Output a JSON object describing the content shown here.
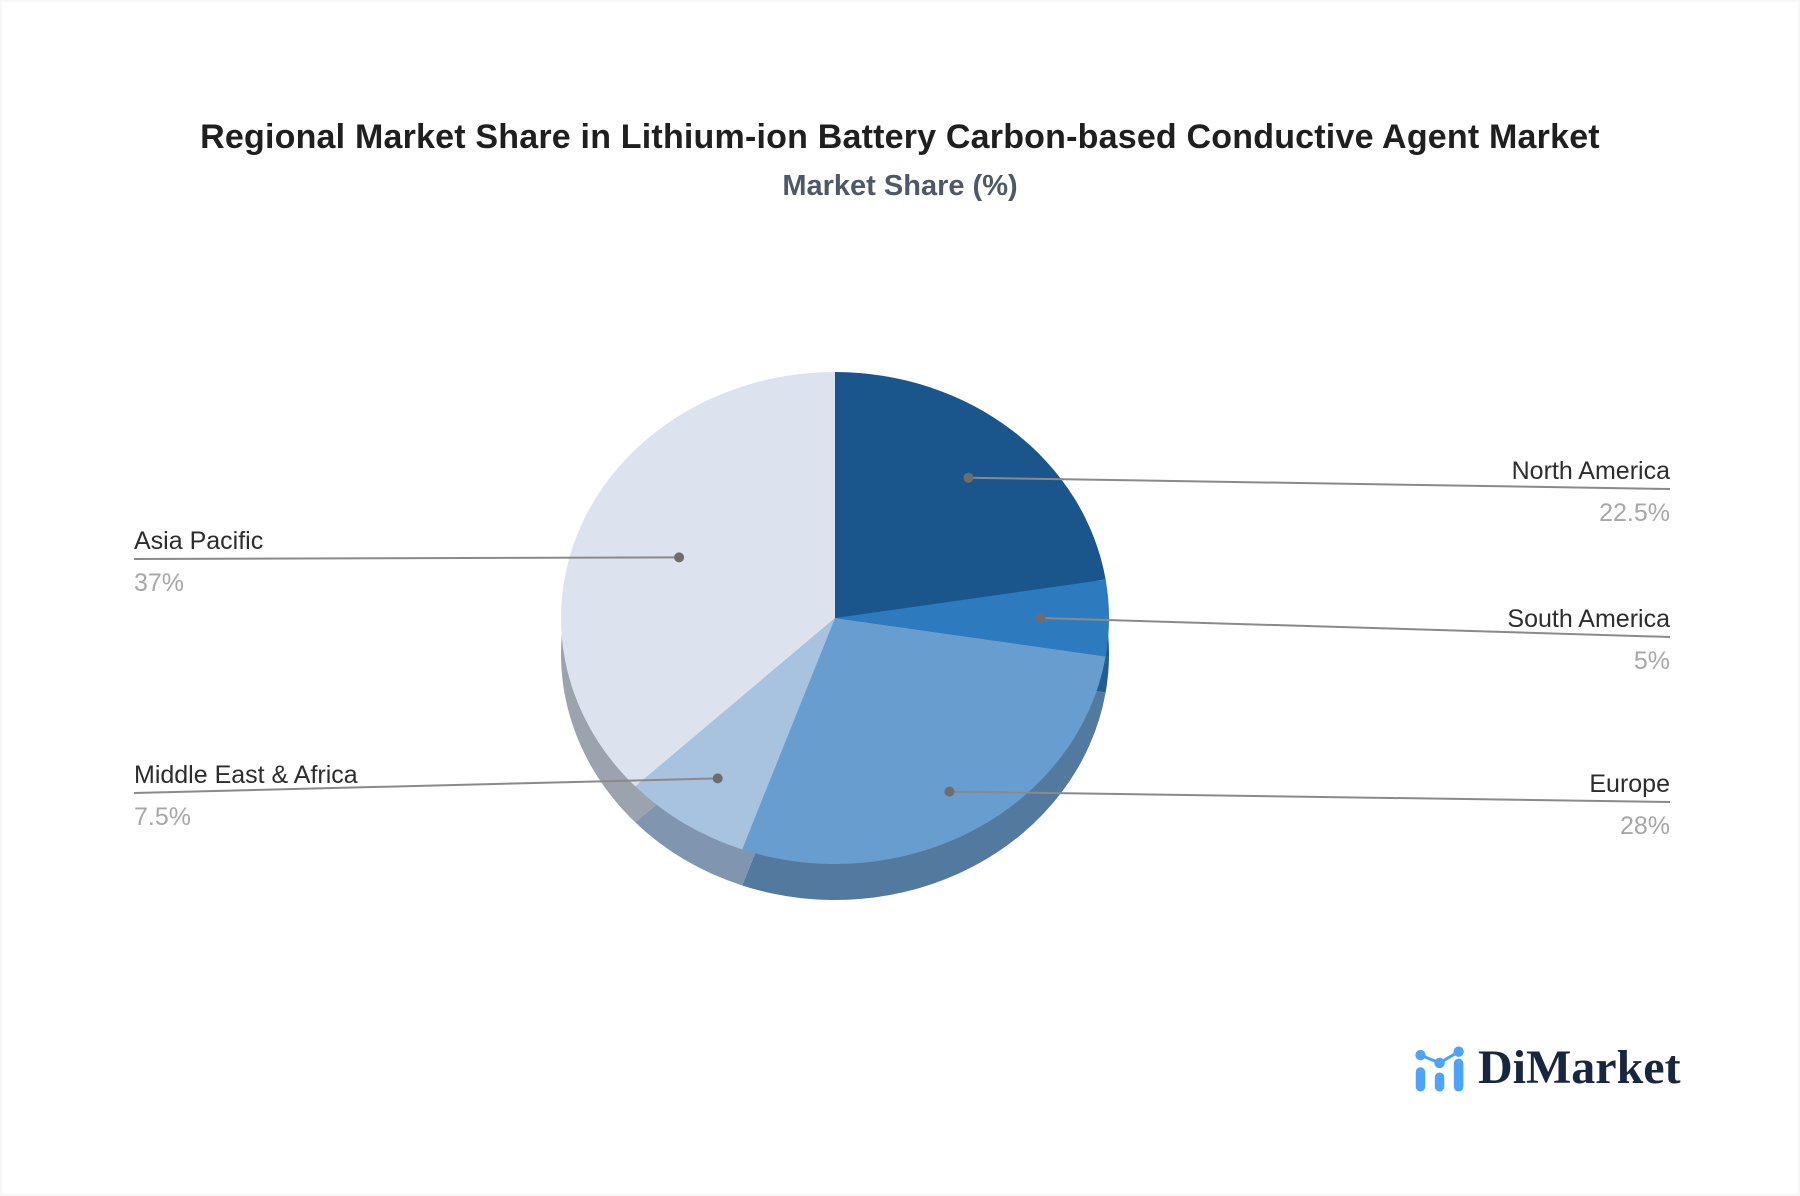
{
  "title": "Regional Market Share in Lithium-ion Battery Carbon-based Conductive Agent Market",
  "subtitle": "Market Share (%)",
  "logo": {
    "text": "DiMarket",
    "icon": "bar-line-chart-icon",
    "icon_color": "#4da3f5",
    "text_color": "#18263f"
  },
  "chart_data": {
    "type": "pie",
    "title": "Regional Market Share in Lithium-ion Battery Carbon-based Conductive Agent Market",
    "subtitle": "Market Share (%)",
    "unit": "%",
    "start_angle_deg": 0,
    "direction": "clockwise",
    "effect": "3d-depth",
    "legend_position": "none",
    "label_style": "callout-lines",
    "line_color": "#8a8a8a",
    "dot_color": "#6d6d6d",
    "label_name_color": "#2d2d2d",
    "label_value_color": "#a7a7a7",
    "series": [
      {
        "name": "North America",
        "value": 22.5,
        "display_value": "22.5%",
        "color": "#1a568c",
        "side_color": "#133f69",
        "label_side": "right"
      },
      {
        "name": "South America",
        "value": 5,
        "display_value": "5%",
        "color": "#2e7abf",
        "side_color": "#225c92",
        "label_side": "right"
      },
      {
        "name": "Europe",
        "value": 28,
        "display_value": "28%",
        "color": "#689dd0",
        "side_color": "#527a9f",
        "label_side": "right"
      },
      {
        "name": "Middle East & Africa",
        "value": 7.5,
        "display_value": "7.5%",
        "color": "#a7c3df",
        "side_color": "#8095b0",
        "label_side": "left"
      },
      {
        "name": "Asia Pacific",
        "value": 37,
        "display_value": "37%",
        "color": "#dce3ee",
        "side_color": "#9aa3ae",
        "label_side": "left"
      }
    ]
  }
}
